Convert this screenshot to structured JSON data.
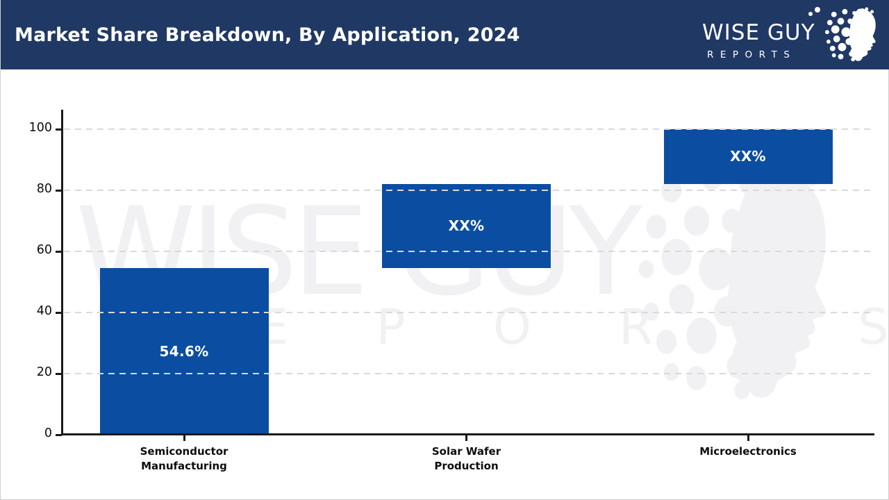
{
  "header": {
    "title": "Market Share Breakdown, By Application, 2024",
    "bg_color": "#203864",
    "logo": {
      "brand_line1": "WISE GUY",
      "brand_line2": "REPORTS"
    }
  },
  "watermark": {
    "line1": "WISE GUY",
    "line2": "R E P O R T S"
  },
  "chart_data": {
    "type": "bar",
    "variant": "floating-segment waterfall share chart",
    "title": "Market Share Breakdown, By Application, 2024",
    "xlabel": "",
    "ylabel": "",
    "ylim": [
      0,
      100
    ],
    "yticks": [
      0,
      20,
      40,
      60,
      80,
      100
    ],
    "grid": {
      "horizontal": true,
      "style": "dashed",
      "color": "#d9d9d9",
      "drawn_over_bars": true
    },
    "bar_color": "#0b4da1",
    "bar_label_color": "#ffffff",
    "legend": "none",
    "categories": [
      [
        "Semiconductor",
        "Manufacturing"
      ],
      [
        "Solar Wafer",
        "Production"
      ],
      [
        "Microelectronics"
      ]
    ],
    "segments": [
      {
        "category": "Semiconductor Manufacturing",
        "from": 0,
        "to": 54.6,
        "label": "54.6%"
      },
      {
        "category": "Solar Wafer Production",
        "from": 54.6,
        "to": 82.1,
        "label": "XX%"
      },
      {
        "category": "Microelectronics",
        "from": 82.1,
        "to": 100,
        "label": "XX%"
      }
    ]
  }
}
